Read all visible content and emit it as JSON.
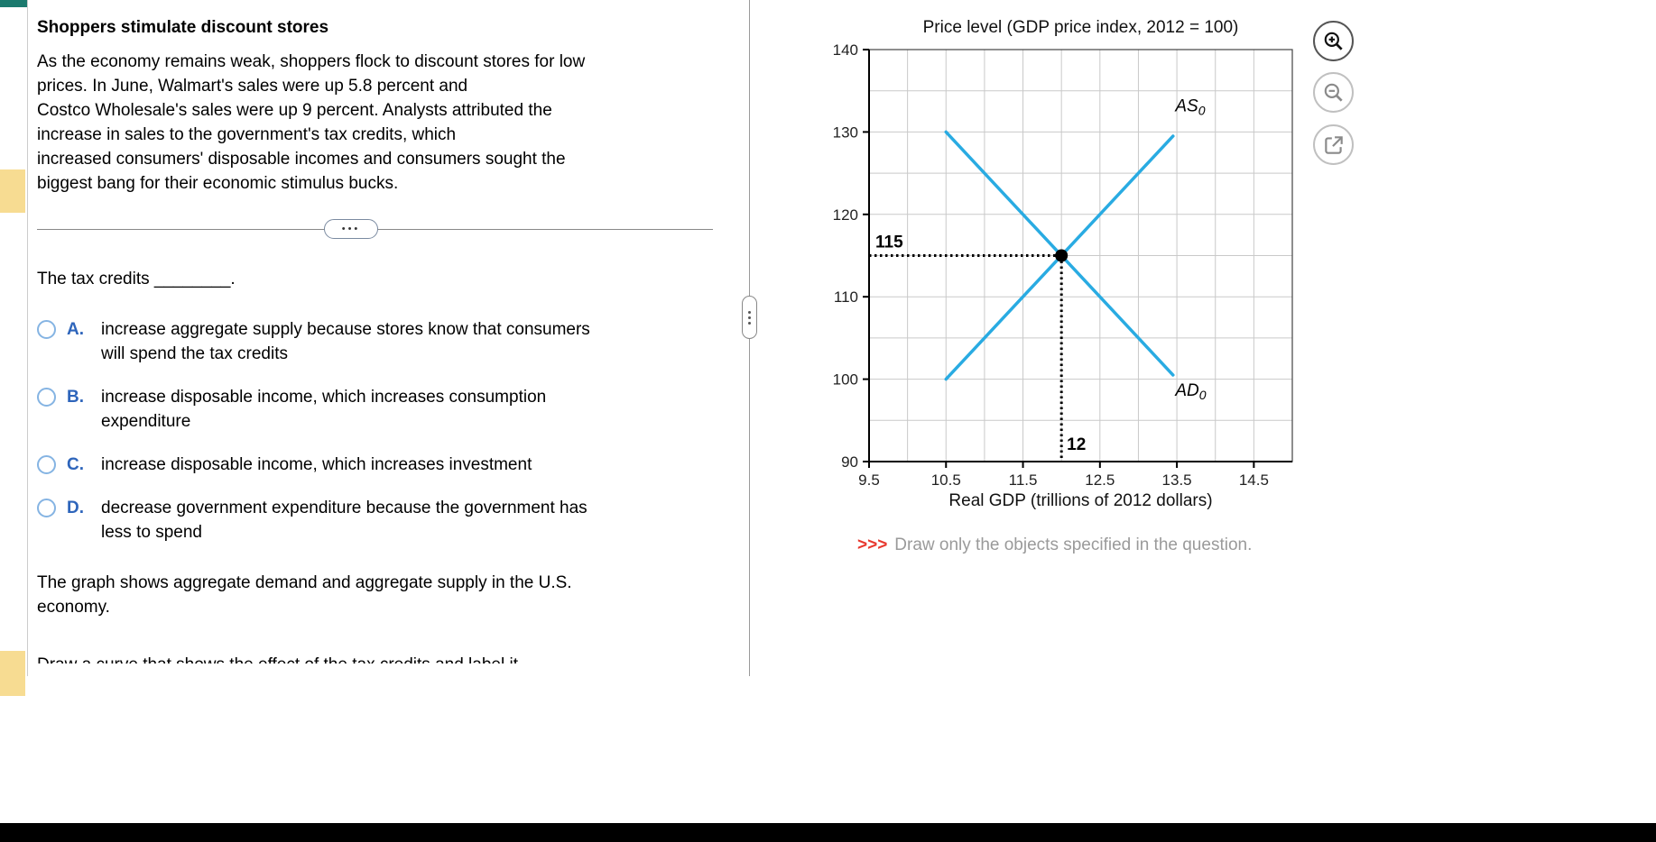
{
  "article": {
    "title": "Shoppers stimulate discount stores",
    "body_lines": [
      "As the economy remains weak, shoppers flock to discount stores for low",
      "prices. In June, Walmart's sales were up 5.8 percent and",
      "Costco Wholesale's sales were up 9 percent. Analysts attributed the",
      "increase in sales to the government's tax credits, which",
      "increased consumers' disposable incomes and consumers sought the",
      "biggest bang for their economic stimulus bucks."
    ]
  },
  "divider": {
    "ellipsis": "•••"
  },
  "question": {
    "stem": "The tax credits ________.",
    "options": [
      {
        "letter": "A.",
        "lines": [
          "increase aggregate supply because stores know that consumers",
          "will spend the tax credits"
        ]
      },
      {
        "letter": "B.",
        "lines": [
          "increase disposable income, which increases consumption",
          "expenditure"
        ]
      },
      {
        "letter": "C.",
        "lines": [
          "increase disposable income, which increases investment"
        ]
      },
      {
        "letter": "D.",
        "lines": [
          "decrease government expenditure because the government has",
          "less to spend"
        ]
      }
    ],
    "graph_note_lines": [
      "The graph shows aggregate demand and aggregate supply in the U.S.",
      "economy."
    ],
    "cutoff_line": "Draw a curve that shows the effect of the tax credits and label it."
  },
  "instruction": {
    "prefix": ">>>",
    "text": "Draw only the objects specified in the question."
  },
  "chart_data": {
    "type": "line",
    "title": "Price level (GDP price index, 2012 = 100)",
    "xlabel": "Real GDP (trillions of 2012 dollars)",
    "xlim": [
      9.5,
      15.0
    ],
    "ylim": [
      90,
      140
    ],
    "x_ticks": [
      9.5,
      10.5,
      11.5,
      12.5,
      13.5,
      14.5
    ],
    "y_ticks": [
      90,
      100,
      110,
      120,
      130,
      140
    ],
    "grid": true,
    "grid_step_x": 0.5,
    "grid_step_y": 5,
    "curve_color": "#29abe2",
    "series": [
      {
        "name": "AS0",
        "label": "AS",
        "label_sub": "0",
        "color": "#29abe2",
        "points": [
          [
            10.5,
            100
          ],
          [
            13.45,
            129.5
          ]
        ],
        "label_pos": [
          13.48,
          132.5
        ]
      },
      {
        "name": "AD0",
        "label": "AD",
        "label_sub": "0",
        "color": "#29abe2",
        "points": [
          [
            10.5,
            130
          ],
          [
            13.45,
            100.5
          ]
        ],
        "label_pos": [
          13.48,
          98.0
        ]
      }
    ],
    "equilibrium": {
      "x": 12,
      "y": 115,
      "price_label": "115",
      "gdp_label": "12"
    }
  }
}
